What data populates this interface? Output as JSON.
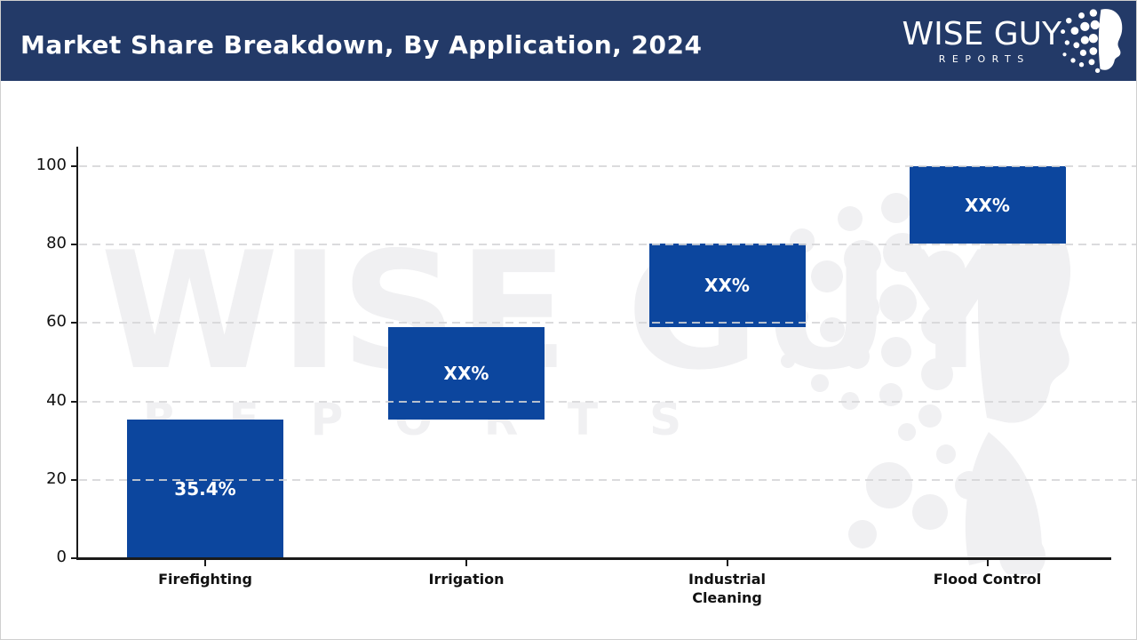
{
  "header": {
    "title": "Market Share Breakdown, By Application, 2024",
    "logo": {
      "name": "WISE GUY",
      "tagline": "REPORTS"
    }
  },
  "watermark": {
    "line1": "WISE GUY",
    "line2": "REPORTS"
  },
  "chart_data": {
    "type": "bar",
    "subtype": "waterfall-stacked-percentage",
    "title": "Market Share Breakdown, By Application, 2024",
    "categories": [
      "Firefighting",
      "Irrigation",
      "Industrial\nCleaning",
      "Flood Control"
    ],
    "segments": [
      {
        "category": "Firefighting",
        "start": 0,
        "end": 35.4,
        "label": "35.4%"
      },
      {
        "category": "Irrigation",
        "start": 35.4,
        "end": 59,
        "label": "XX%"
      },
      {
        "category": "Industrial\nCleaning",
        "start": 59,
        "end": 80.2,
        "label": "XX%"
      },
      {
        "category": "Flood Control",
        "start": 80.2,
        "end": 100,
        "label": "XX%"
      }
    ],
    "unit": "%",
    "ylim": [
      0,
      100
    ],
    "yticks": [
      0,
      20,
      40,
      60,
      80,
      100
    ],
    "xlabel": "",
    "ylabel": "",
    "grid": "horizontal-dashed-over-bars",
    "legend": "none",
    "bar_color": "#0c469e",
    "bar_label_color": "#ffffff",
    "axis_color": "#1a1a1a",
    "gridline_color": "#d9d9d9",
    "header_bg_color": "#233a68",
    "watermark_color": "#f0f0f2"
  }
}
